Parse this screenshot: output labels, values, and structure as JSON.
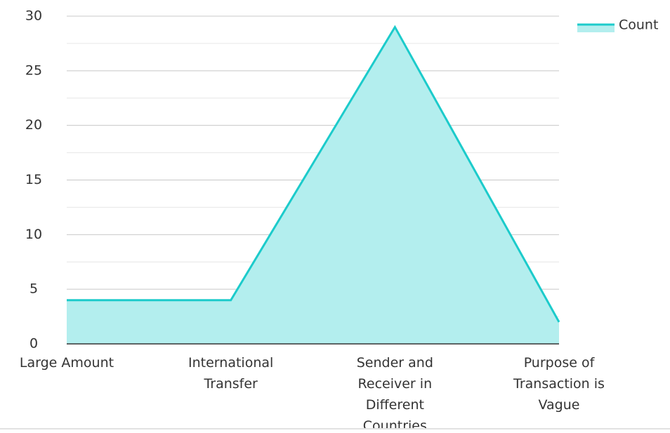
{
  "chart_data": {
    "type": "area",
    "categories": [
      "Large Amount",
      "International Transfer",
      "Sender and Receiver in Different Countries",
      "Purpose of Transaction is Vague"
    ],
    "series": [
      {
        "name": "Count",
        "color": "#1ccbcb",
        "fill": "#b3eeee",
        "values": [
          4,
          4,
          29,
          2
        ]
      }
    ],
    "ylim": [
      0,
      30
    ],
    "yticks": [
      0,
      5,
      10,
      15,
      20,
      25,
      30
    ],
    "yminorticks": [
      2.5,
      7.5,
      12.5,
      17.5,
      22.5,
      27.5
    ],
    "grid": true,
    "legend": "top-right"
  }
}
